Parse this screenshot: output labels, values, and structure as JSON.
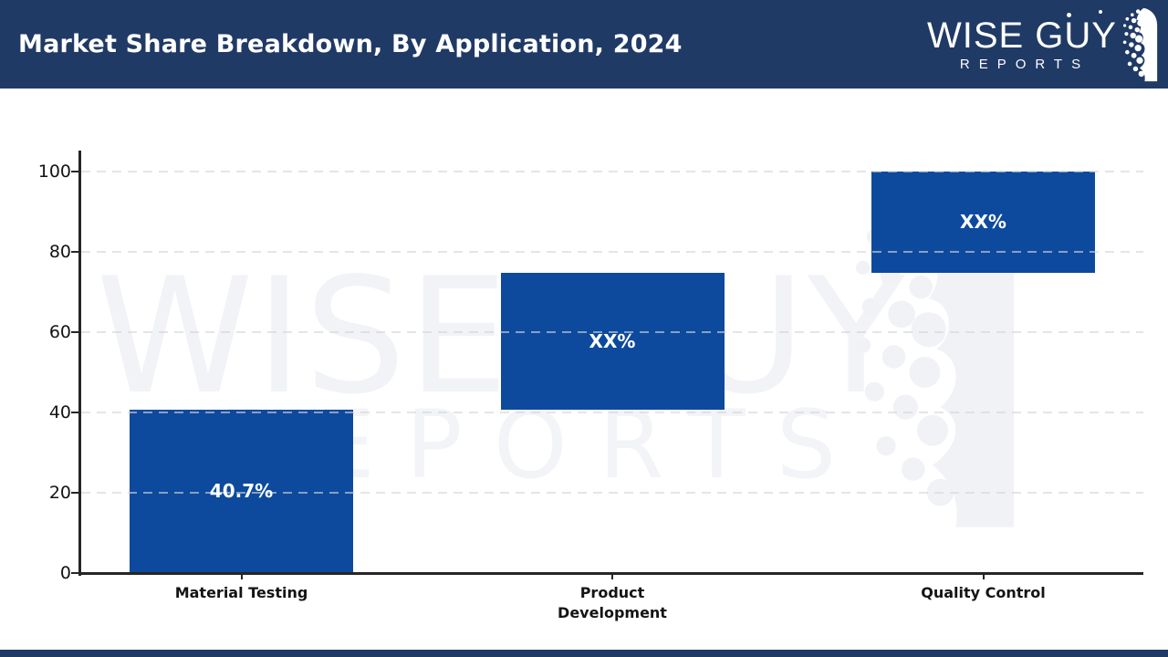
{
  "header": {
    "title": "Market Share Breakdown, By Application, 2024",
    "logo": {
      "line1": "WISE GUY",
      "line2": "REPORTS"
    }
  },
  "watermark": {
    "line1": "WISE GUY",
    "line2": "REPORTS"
  },
  "chart_data": {
    "type": "bar",
    "subtype": "waterfall",
    "title": "Market Share Breakdown, By Application, 2024",
    "categories": [
      "Material Testing",
      "Product Development",
      "Quality Control"
    ],
    "series": [
      {
        "name": "Market Share",
        "segments": [
          {
            "category": "Material Testing",
            "start": 0,
            "end": 40.7,
            "label": "40.7%"
          },
          {
            "category": "Product Development",
            "start": 40.7,
            "end": 74.8,
            "label": "XX%"
          },
          {
            "category": "Quality Control",
            "start": 74.8,
            "end": 100,
            "label": "XX%"
          }
        ]
      }
    ],
    "xlabel": "",
    "ylabel": "",
    "ylim": [
      0,
      100
    ],
    "yticks": [
      0,
      20,
      40,
      60,
      80,
      100
    ],
    "grid": "dashed-horizontal",
    "legend": "none",
    "bar_labels_inside": true
  },
  "colors": {
    "header_bg": "#203a66",
    "footer_bg": "#203a66",
    "bar_fill": "#0d4a9e",
    "bar_label": "#ffffff",
    "grid": "#d5d5d5",
    "axis": "#262626",
    "tick_label": "#141414",
    "watermark": "#f2f3f6"
  }
}
